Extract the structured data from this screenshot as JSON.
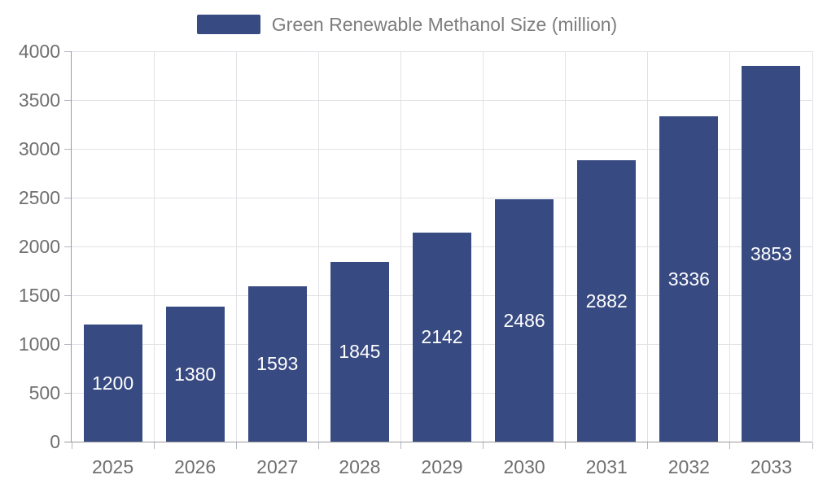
{
  "legend": {
    "label": "Green Renewable Methanol Size (million)"
  },
  "chart_data": {
    "type": "bar",
    "title": "Green Renewable Methanol Size (million)",
    "categories": [
      "2025",
      "2026",
      "2027",
      "2028",
      "2029",
      "2030",
      "2031",
      "2032",
      "2033"
    ],
    "values": [
      1200,
      1380,
      1593,
      1845,
      2142,
      2486,
      2882,
      3336,
      3853
    ],
    "series_name": "Green Renewable Methanol Size (million)",
    "xlabel": "",
    "ylabel": "",
    "ylim": [
      0,
      4000
    ],
    "ytick_step": 500,
    "grid": true,
    "legend_position": "top",
    "bar_labels_inside": true
  },
  "colors": {
    "bar": "#384a82",
    "bar_label": "#ffffff",
    "legend_text": "#7d7d7d",
    "axis_label": "#6f6f6f",
    "gridline": "#e2e2e6",
    "axis_line": "#9a9a9a",
    "tick": "#b3b7c2",
    "background": "#ffffff"
  }
}
